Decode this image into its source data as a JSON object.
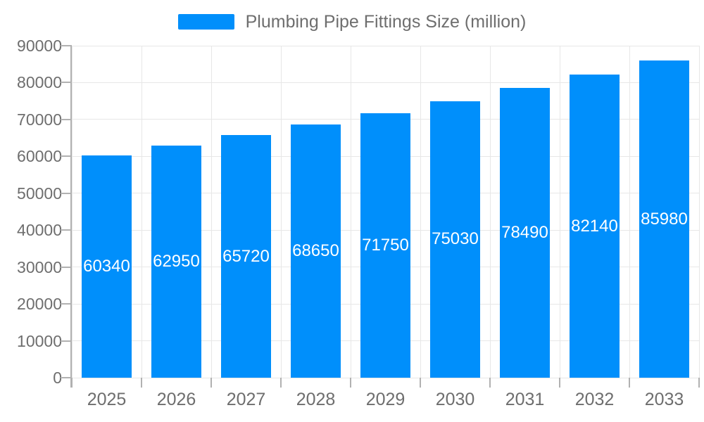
{
  "chart_data": {
    "type": "bar",
    "title": "Plumbing Pipe Fittings Size (million)",
    "legend": [
      "Plumbing Pipe Fittings Size (million)"
    ],
    "legend_position": "top",
    "categories": [
      "2025",
      "2026",
      "2027",
      "2028",
      "2029",
      "2030",
      "2031",
      "2032",
      "2033"
    ],
    "values": [
      60340,
      62950,
      65720,
      68650,
      71750,
      75030,
      78490,
      82140,
      85980
    ],
    "xlabel": "",
    "ylabel": "",
    "ylim": [
      0,
      90000
    ],
    "yticks": [
      0,
      10000,
      20000,
      30000,
      40000,
      50000,
      60000,
      70000,
      80000,
      90000
    ],
    "grid": true,
    "data_labels": "inside-center"
  },
  "colors": {
    "bar": "#008FFB",
    "bar_label": "#FFFFFF",
    "axis_text": "#6E6E6E",
    "grid_line": "#E7E7E7",
    "axis_line": "#B1B1B1",
    "background": "#FFFFFF"
  }
}
